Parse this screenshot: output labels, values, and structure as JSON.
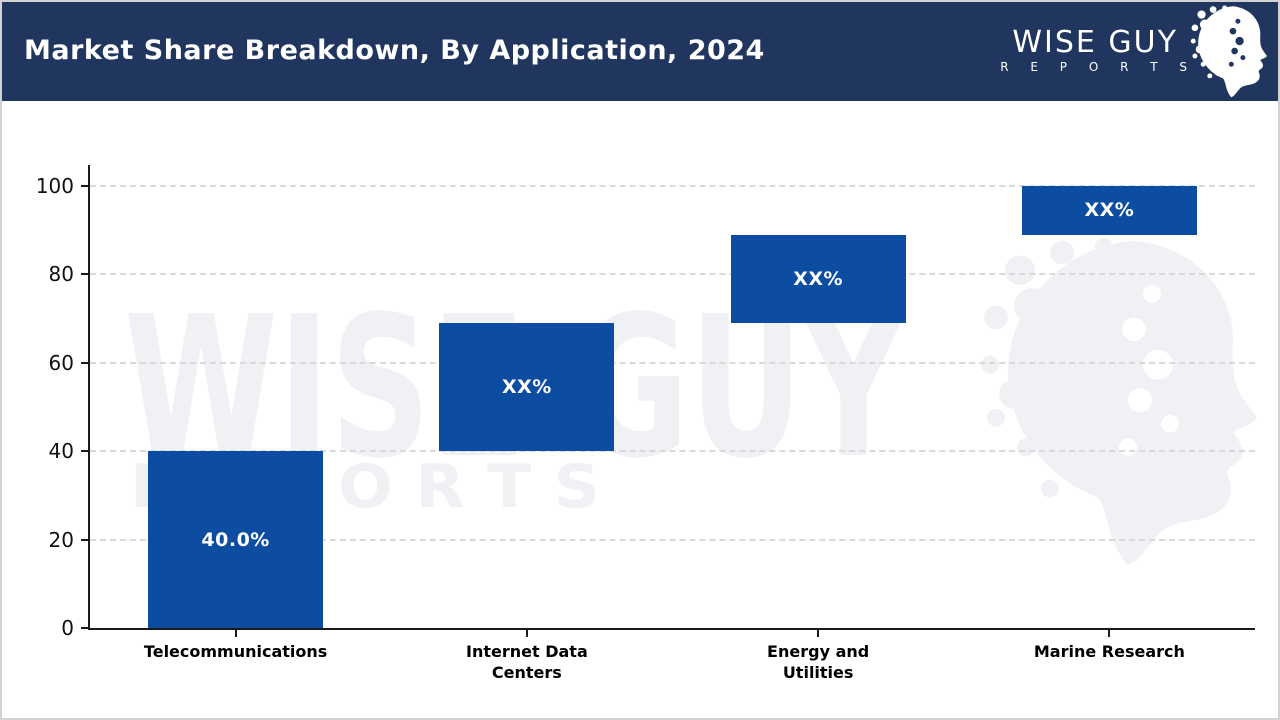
{
  "header": {
    "title": "Market Share Breakdown, By Application, 2024",
    "logo": {
      "brand_top": "WISE GUY",
      "brand_bottom": "R E P O R T S"
    }
  },
  "watermark": {
    "line1": "WISE GUY",
    "line2": "R E P O R T S"
  },
  "chart_data": {
    "type": "bar",
    "subtype": "waterfall-market-share",
    "title": "Market Share Breakdown, By Application, 2024",
    "categories": [
      "Telecommunications",
      "Internet Data Centers",
      "Energy and Utilities",
      "Marine Research"
    ],
    "categories_display": [
      "Telecommunications",
      "Internet Data\nCenters",
      "Energy and\nUtilities",
      "Marine Research"
    ],
    "segments": [
      {
        "category": "Telecommunications",
        "start": 0,
        "end": 40,
        "value_label": "40.0%"
      },
      {
        "category": "Internet Data Centers",
        "start": 40,
        "end": 69,
        "value_label": "XX%"
      },
      {
        "category": "Energy and Utilities",
        "start": 69,
        "end": 89,
        "value_label": "XX%"
      },
      {
        "category": "Marine Research",
        "start": 89,
        "end": 100,
        "value_label": "XX%"
      }
    ],
    "xlabel": "",
    "ylabel": "",
    "ylim": [
      0,
      100
    ],
    "yticks": [
      0,
      20,
      40,
      60,
      80,
      100
    ],
    "grid": "horizontal-dashed",
    "legend": null,
    "colors": {
      "bar": "#0c4da2",
      "grid": "#d9d9d9",
      "axis": "#1a1a1a",
      "header_bg": "#21365f",
      "bar_label_text": "#ffffff",
      "watermark": "#f0f1f4"
    }
  }
}
